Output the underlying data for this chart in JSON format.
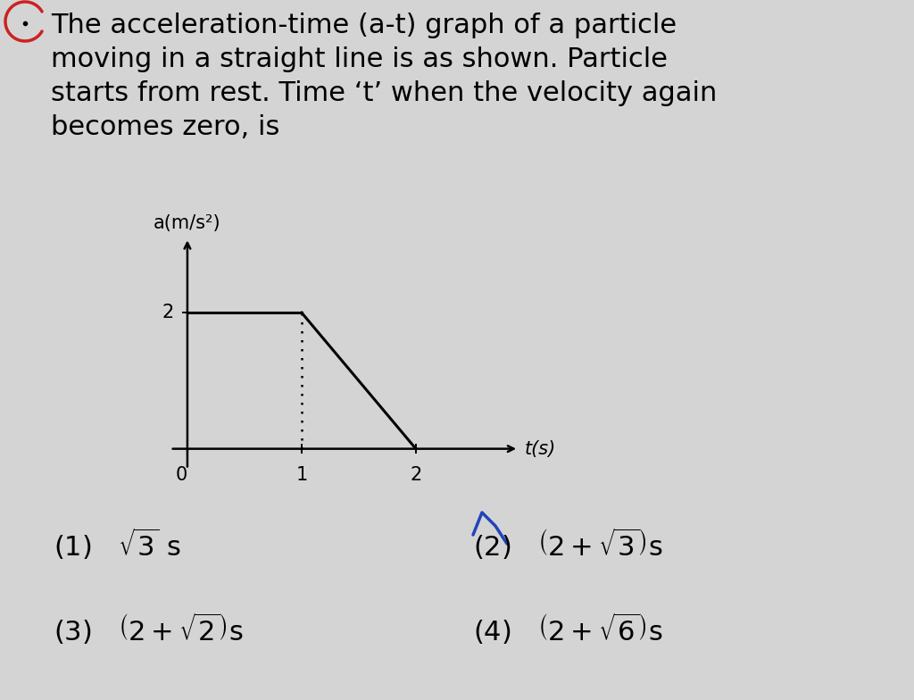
{
  "background_color": "#d4d4d4",
  "question_lines": [
    "The acceleration-time (a-t) graph of a particle",
    "moving in a straight line is as shown. Particle",
    "starts from rest. Time ‘t’ when the velocity again",
    "becomes zero, is"
  ],
  "ylabel": "a(m/s²)",
  "xlabel": "t(s)",
  "dashed_color": "#000000",
  "line_color": "#000000",
  "option1": "(1)   $\\sqrt{3}$ s",
  "option2": "(2)   $\\left(2+\\sqrt{3}\\right)$s",
  "option3": "(3)   $\\left(2+\\sqrt{2}\\right)$s",
  "option4": "(4)   $\\left(2+\\sqrt{6}\\right)$s",
  "check_color": "#2244bb",
  "font_size_question": 22,
  "font_size_options": 22,
  "font_size_axis_label": 15,
  "font_size_tick": 15,
  "circle_color": "#cc2222"
}
